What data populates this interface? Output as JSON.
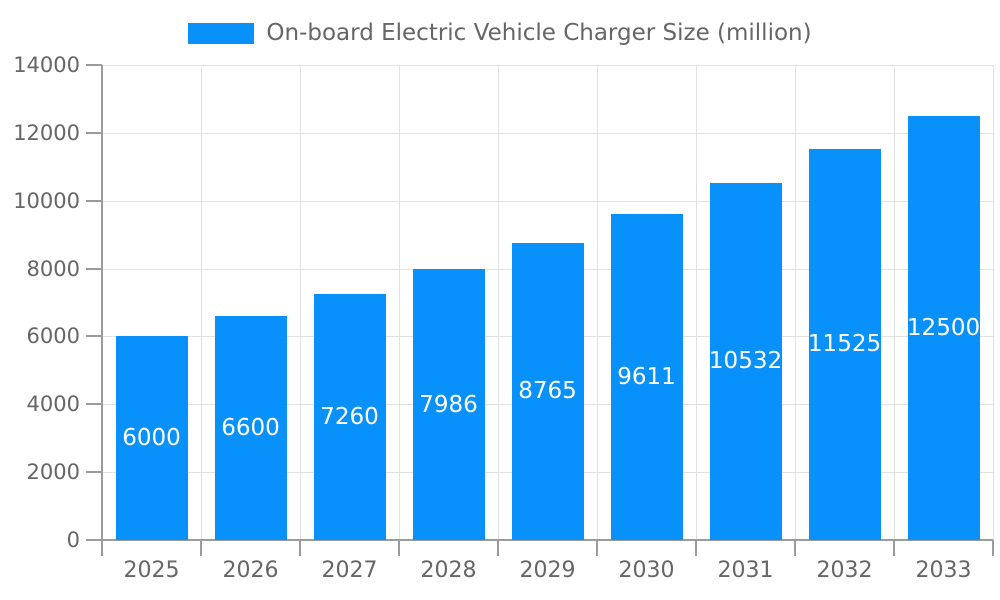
{
  "legend": {
    "label": "On-board Electric Vehicle Charger Size (million)",
    "swatch_color": "#0891FA"
  },
  "chart_data": {
    "type": "bar",
    "title": "On-board Electric Vehicle Charger Size (million)",
    "categories": [
      "2025",
      "2026",
      "2027",
      "2028",
      "2029",
      "2030",
      "2031",
      "2032",
      "2033"
    ],
    "values": [
      6000,
      6600,
      7260,
      7986,
      8765,
      9611,
      10532,
      11525,
      12500
    ],
    "value_labels": [
      "6000",
      "6600",
      "7260",
      "7986",
      "8765",
      "9611",
      "10532",
      "11525",
      "12500"
    ],
    "xlabel": "",
    "ylabel": "",
    "ylim": [
      0,
      14000
    ],
    "yticks": [
      0,
      2000,
      4000,
      6000,
      8000,
      10000,
      12000,
      14000
    ],
    "ytick_labels": [
      "0",
      "2000",
      "4000",
      "6000",
      "8000",
      "10000",
      "12000",
      "14000"
    ],
    "grid": true,
    "legend_position": "top",
    "colors": {
      "bar": "#0891FA",
      "bar_label": "#ffffff",
      "axis_label": "#666666",
      "gridline": "#e2e2e2",
      "axis_line": "#9b9b9b",
      "background": "#ffffff"
    }
  }
}
